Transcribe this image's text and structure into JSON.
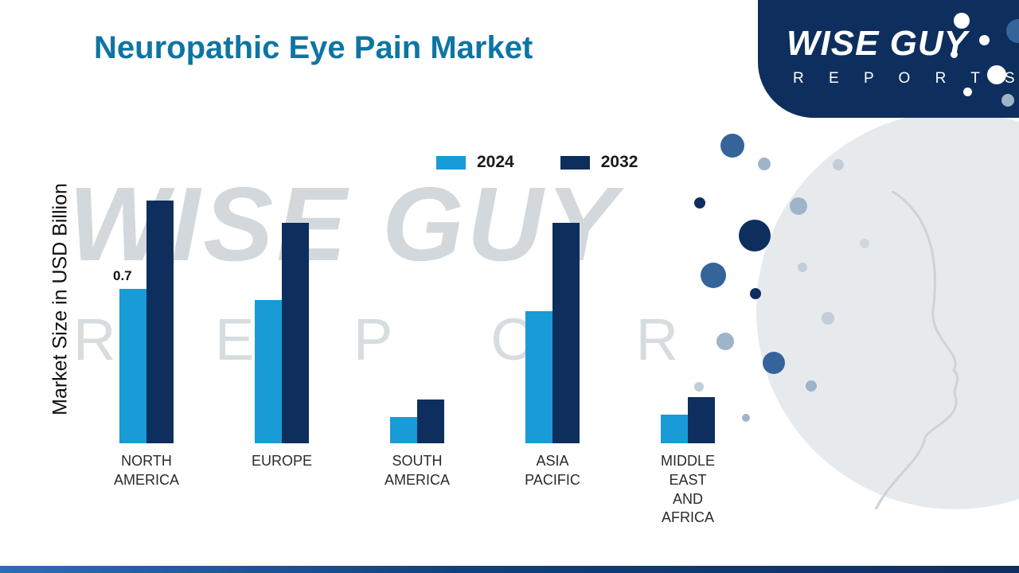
{
  "header": {
    "title": "Neuropathic Eye Pain Market"
  },
  "logo": {
    "name": "WISE GUY",
    "reports": "R E P O R T S"
  },
  "watermark": {
    "name": "WISE GUY",
    "reports": "R E P O R T S"
  },
  "chart_data": {
    "type": "bar",
    "title": "Neuropathic Eye Pain Market",
    "ylabel": "Market Size in USD Billion",
    "xlabel": "",
    "units": "USD Billion",
    "categories": [
      "NORTH AMERICA",
      "EUROPE",
      "SOUTH AMERICA",
      "ASIA PACIFIC",
      "MIDDLE EAST AND AFRICA"
    ],
    "category_display": [
      [
        "NORTH",
        "AMERICA"
      ],
      [
        "EUROPE"
      ],
      [
        "SOUTH",
        "AMERICA"
      ],
      [
        "ASIA",
        "PACIFIC"
      ],
      [
        "MIDDLE",
        "EAST",
        "AND",
        "AFRICA"
      ]
    ],
    "series": [
      {
        "name": "2024",
        "color": "#199bd7",
        "values": [
          0.7,
          0.65,
          0.12,
          0.6,
          0.13
        ]
      },
      {
        "name": "2032",
        "color": "#0e2f5d",
        "values": [
          1.1,
          1.0,
          0.2,
          1.0,
          0.21
        ]
      }
    ],
    "data_labels": [
      {
        "series": "2024",
        "category": "NORTH AMERICA",
        "text": "0.7"
      }
    ],
    "ylim": [
      0,
      1.2
    ],
    "grid": false,
    "axes_visible": false,
    "legend_position": "top-center"
  },
  "colors": {
    "series_2024": "#199bd7",
    "series_2032": "#0e2f5d",
    "title_text": "#0d75a3",
    "logo_bg": "#0e2f5d",
    "footer_bar": "#0e2f5d"
  }
}
